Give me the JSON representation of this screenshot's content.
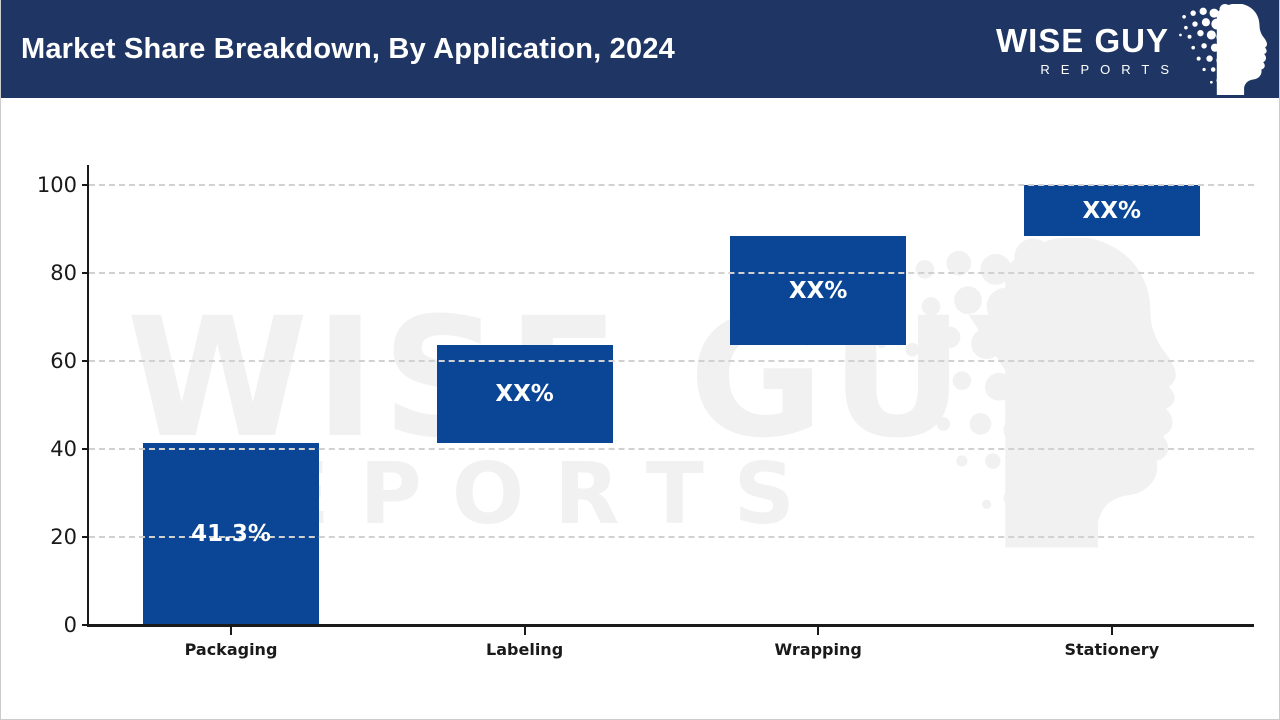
{
  "header": {
    "title": "Market Share Breakdown, By Application, 2024",
    "bg_color": "#1f3665",
    "logo": {
      "line1": "WISE GUY",
      "line2": "REPORTS"
    }
  },
  "watermark": {
    "line1": "WISE GUY",
    "line2": "REPORTS"
  },
  "chart_data": {
    "type": "bar",
    "subtype": "waterfall",
    "title": "",
    "xlabel": "",
    "ylabel": "",
    "categories": [
      "Packaging",
      "Labeling",
      "Wrapping",
      "Stationery"
    ],
    "segments": [
      {
        "category": "Packaging",
        "start": 0,
        "end": 41.3,
        "label": "41.3%"
      },
      {
        "category": "Labeling",
        "start": 41.3,
        "end": 63.6,
        "label": "XX%"
      },
      {
        "category": "Wrapping",
        "start": 63.6,
        "end": 88.3,
        "label": "XX%"
      },
      {
        "category": "Stationery",
        "start": 88.3,
        "end": 100,
        "label": "XX%"
      }
    ],
    "ylim": [
      0,
      100
    ],
    "yticks": [
      0,
      20,
      40,
      60,
      80,
      100
    ],
    "grid": "horizontal-dashed",
    "legend": "none",
    "bar_color": "#0a4596",
    "bar_label_color": "#ffffff",
    "grid_color": "#d1d1d1",
    "axis_color": "#1a1a1a",
    "watermark_color": "#f1f1f2"
  }
}
